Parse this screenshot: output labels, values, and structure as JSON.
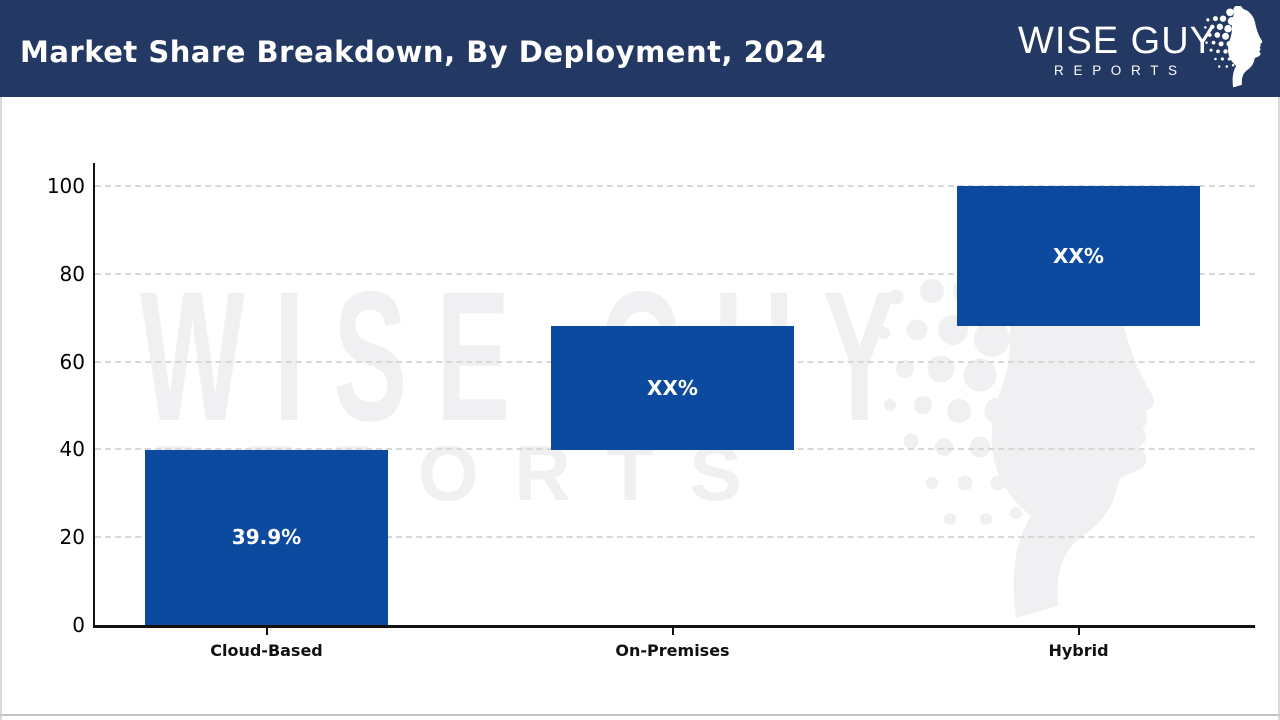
{
  "header": {
    "title": "Market Share Breakdown, By Deployment, 2024",
    "bg_color": "#233862",
    "logo": {
      "wordmark": "WISE GUY",
      "subtext": "R E P O R T S"
    }
  },
  "watermark": {
    "wordmark": "WISE GUY",
    "subtext": "R E P O R T S"
  },
  "chart_data": {
    "type": "bar",
    "subtype": "floating-segment-stacked (waterfall-style market share)",
    "title": "Market Share Breakdown, By Deployment, 2024",
    "categories": [
      "Cloud-Based",
      "On-Premises",
      "Hybrid"
    ],
    "segments": [
      {
        "category": "Cloud-Based",
        "from": 0,
        "to": 39.9,
        "label": "39.9%"
      },
      {
        "category": "On-Premises",
        "from": 39.9,
        "to": 68,
        "label": "XX%"
      },
      {
        "category": "Hybrid",
        "from": 68,
        "to": 100,
        "label": "XX%"
      }
    ],
    "ylim": [
      0,
      100
    ],
    "yticks": [
      0,
      20,
      40,
      60,
      80,
      100
    ],
    "xlabel": "",
    "ylabel": "",
    "grid": "horizontal-dashed",
    "legend": "none",
    "bar_color": "#0b4a9e",
    "bar_label_color": "#ffffff",
    "gridline_color": "#d8d8d8",
    "axis_color": "#111111"
  }
}
